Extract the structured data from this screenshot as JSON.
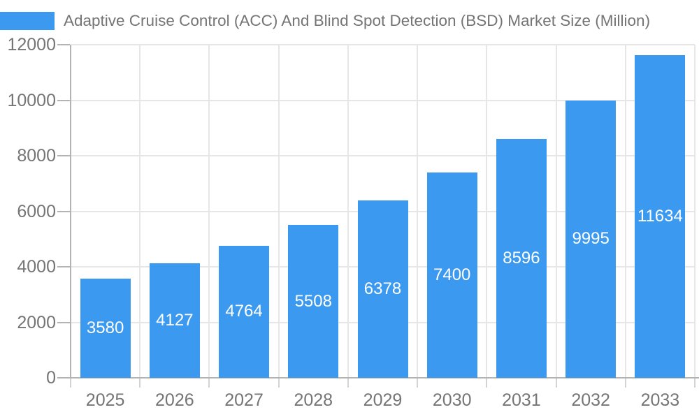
{
  "legend": {
    "swatch_color": "#3B99F0",
    "position": "top-left"
  },
  "colors": {
    "bar": "#3B99F0",
    "grid": "#E6E6E6",
    "axis": "#B3B3B3",
    "tick_x": "#D4D4D4",
    "axis_text": "#757575",
    "value_text": "#FFFFFF",
    "background": "#FFFFFF"
  },
  "chart_data": {
    "type": "bar",
    "title": "Adaptive Cruise Control (ACC) And Blind Spot Detection (BSD) Market Size (Million)",
    "categories": [
      "2025",
      "2026",
      "2027",
      "2028",
      "2029",
      "2030",
      "2031",
      "2032",
      "2033"
    ],
    "series": [
      {
        "name": "Adaptive Cruise Control (ACC) And Blind Spot Detection (BSD) Market Size (Million)",
        "values": [
          3580,
          4127,
          4764,
          5508,
          6378,
          7400,
          8596,
          9995,
          11634
        ]
      }
    ],
    "xlabel": "",
    "ylabel": "",
    "ylim": [
      0,
      12000
    ],
    "yticks": [
      0,
      2000,
      4000,
      6000,
      8000,
      10000,
      12000
    ],
    "grid": true,
    "value_labels": "inside-center",
    "legend_position": "top-left"
  }
}
